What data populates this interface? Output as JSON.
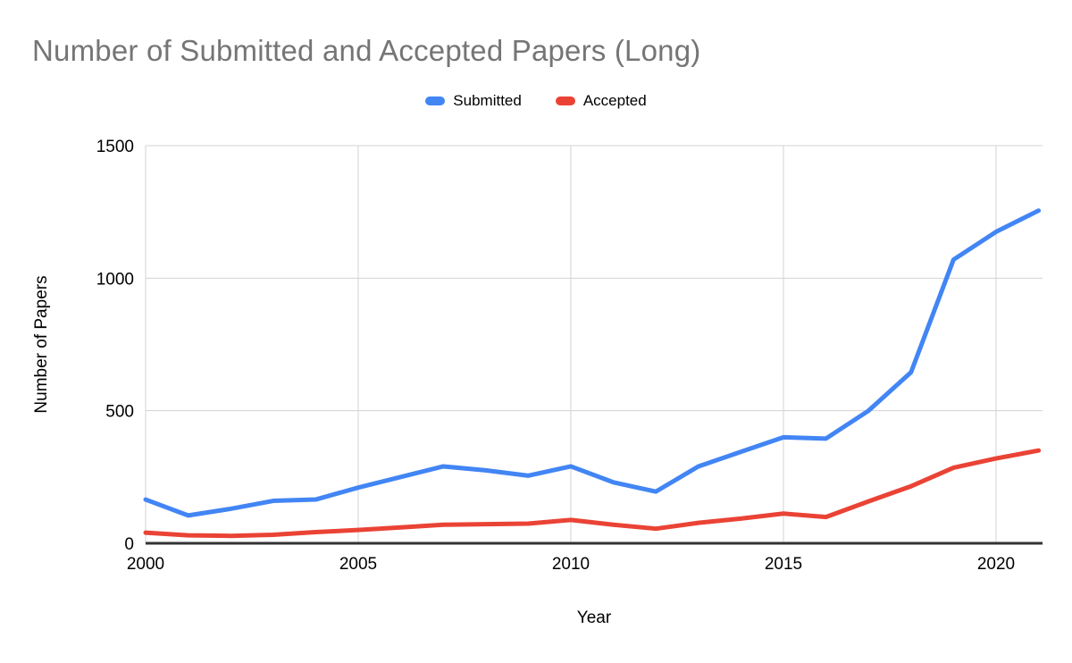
{
  "chart_data": {
    "type": "line",
    "title": "Number of Submitted and Accepted Papers (Long)",
    "xlabel": "Year",
    "ylabel": "Number of Papers",
    "x": [
      2000,
      2001,
      2002,
      2003,
      2004,
      2005,
      2006,
      2007,
      2008,
      2009,
      2010,
      2011,
      2012,
      2013,
      2014,
      2015,
      2016,
      2017,
      2018,
      2019,
      2020,
      2021
    ],
    "series": [
      {
        "name": "Submitted",
        "color": "#4285f4",
        "values": [
          165,
          105,
          130,
          160,
          165,
          210,
          250,
          290,
          275,
          255,
          290,
          230,
          195,
          290,
          345,
          400,
          395,
          500,
          645,
          1070,
          1175,
          1255
        ]
      },
      {
        "name": "Accepted",
        "color": "#ea4335",
        "values": [
          40,
          30,
          28,
          32,
          42,
          50,
          60,
          70,
          72,
          74,
          88,
          70,
          55,
          77,
          93,
          112,
          99,
          158,
          215,
          285,
          320,
          350
        ]
      }
    ],
    "ylim": [
      0,
      1500
    ],
    "yticks": [
      0,
      500,
      1000,
      1500
    ],
    "xticks": [
      2000,
      2005,
      2010,
      2015,
      2020
    ],
    "grid": true,
    "legend_position": "top",
    "line_width": 5,
    "title_color": "#757575",
    "label_color": "#000000",
    "grid_color": "#d3d3d3",
    "axis_color": "#333333"
  }
}
